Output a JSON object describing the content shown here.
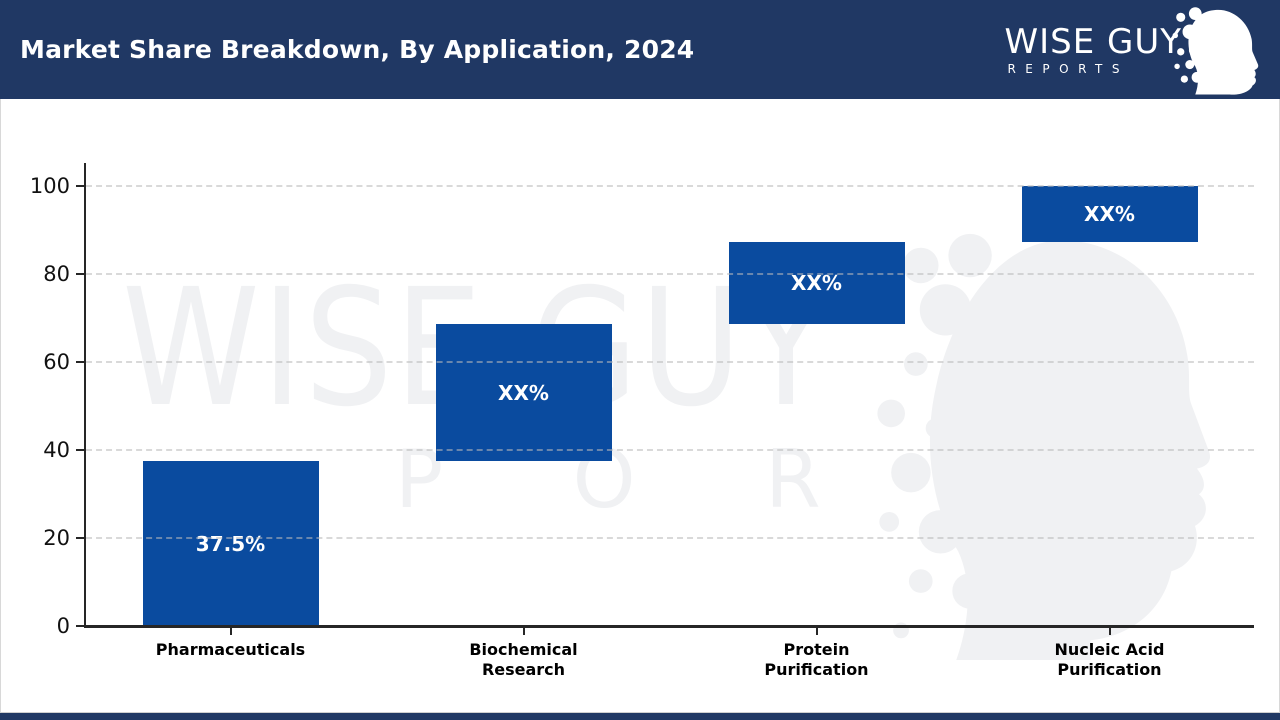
{
  "header": {
    "title": "Market Share Breakdown, By Application, 2024",
    "logo": {
      "wordmark": "WISE GUY",
      "subtext": "REPORTS"
    },
    "bg_color": "#203864"
  },
  "watermark": {
    "line1": "WISE GUY",
    "line2": "P O R T S",
    "color": "#f0f1f3"
  },
  "footer": {
    "bg_color": "#203864"
  },
  "chart_data": {
    "type": "bar",
    "variant": "waterfall",
    "title": "Market Share Breakdown, By Application, 2024",
    "xlabel": "",
    "ylabel": "",
    "ylim": [
      0,
      100
    ],
    "yticks": [
      0,
      20,
      40,
      60,
      80,
      100
    ],
    "grid": "horizontal-dashed",
    "legend": "none",
    "bar_color": "#0a4b9f",
    "categories": [
      "Pharmaceuticals",
      "Biochemical Research",
      "Protein Purification",
      "Nucleic Acid Purification"
    ],
    "category_label_lines": [
      [
        "Pharmaceuticals"
      ],
      [
        "Biochemical",
        "Research"
      ],
      [
        "Protein",
        "Purification"
      ],
      [
        "Nucleic Acid",
        "Purification"
      ]
    ],
    "segments": [
      {
        "category": "Pharmaceuticals",
        "start": 0,
        "end": 37.5,
        "value": 37.5,
        "data_label": "37.5%"
      },
      {
        "category": "Biochemical Research",
        "start": 37.5,
        "end": 68.6,
        "value": 31.1,
        "data_label": "XX%"
      },
      {
        "category": "Protein Purification",
        "start": 68.6,
        "end": 87.3,
        "value": 18.7,
        "data_label": "XX%"
      },
      {
        "category": "Nucleic Acid Purification",
        "start": 87.3,
        "end": 100,
        "value": 12.7,
        "data_label": "XX%"
      }
    ]
  }
}
